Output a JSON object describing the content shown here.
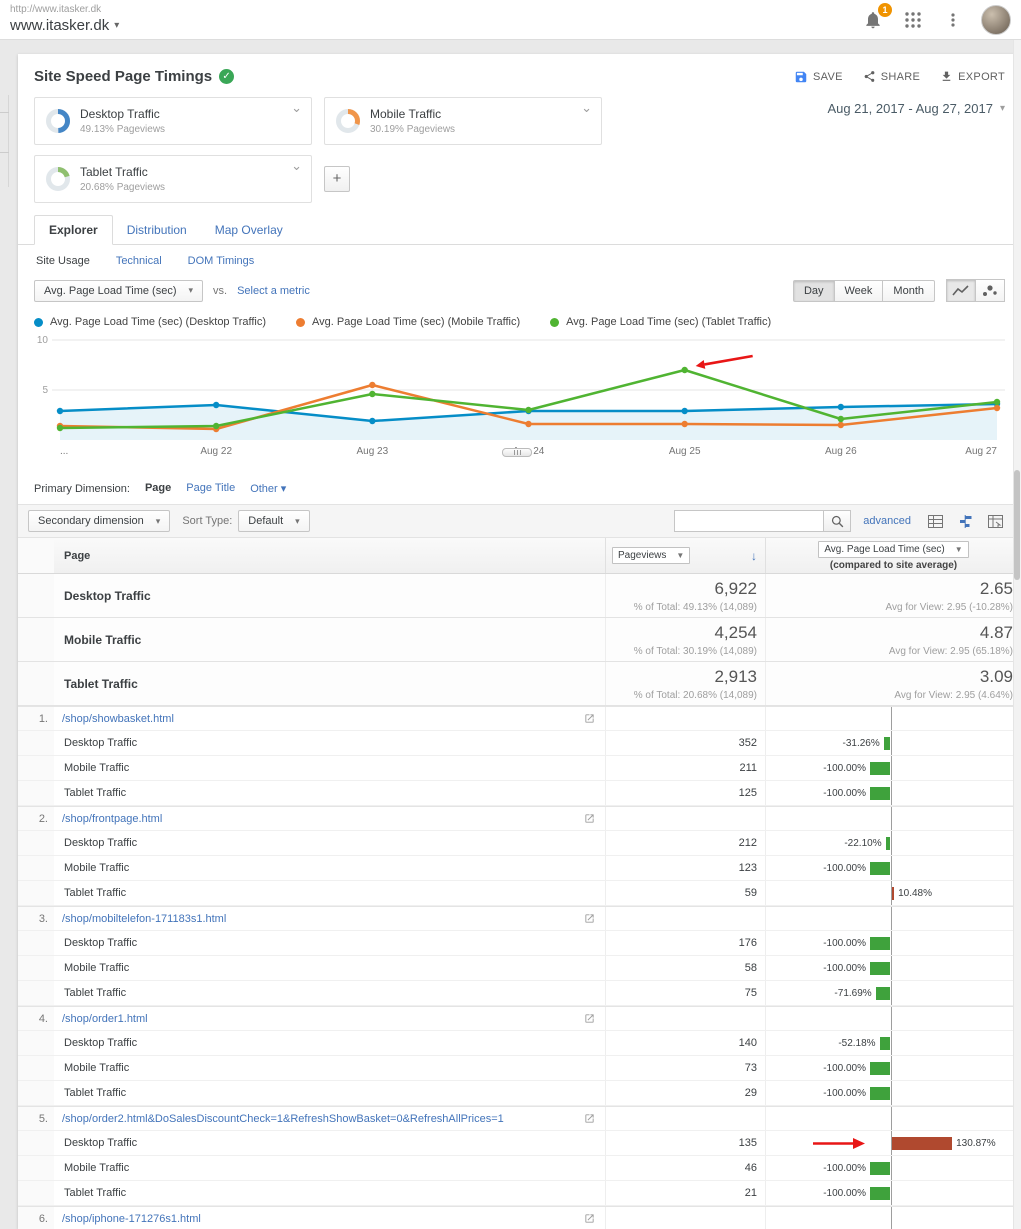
{
  "topbar": {
    "url": "http://www.itasker.dk",
    "account": "www.itasker.dk",
    "notification_count": "1"
  },
  "report": {
    "title": "Site Speed Page Timings",
    "save": "SAVE",
    "share": "SHARE",
    "export": "EXPORT",
    "date_range": "Aug 21, 2017 - Aug 27, 2017"
  },
  "segments": [
    {
      "name": "Desktop Traffic",
      "detail": "49.13% Pageviews",
      "pct": 49.13,
      "color": "#4486c6"
    },
    {
      "name": "Mobile Traffic",
      "detail": "30.19% Pageviews",
      "pct": 30.19,
      "color": "#f0954a"
    },
    {
      "name": "Tablet Traffic",
      "detail": "20.68% Pageviews",
      "pct": 20.68,
      "color": "#8fbf6f"
    }
  ],
  "tabs": [
    {
      "label": "Explorer",
      "active": true
    },
    {
      "label": "Distribution",
      "active": false
    },
    {
      "label": "Map Overlay",
      "active": false
    }
  ],
  "subnav": [
    {
      "label": "Site Usage",
      "active": true
    },
    {
      "label": "Technical",
      "active": false
    },
    {
      "label": "DOM Timings",
      "active": false
    }
  ],
  "controls": {
    "metric": "Avg. Page Load Time (sec)",
    "vs": "vs.",
    "select_metric": "Select a metric",
    "granularity": [
      {
        "label": "Day",
        "active": true
      },
      {
        "label": "Week",
        "active": false
      },
      {
        "label": "Month",
        "active": false
      }
    ]
  },
  "chart_data": {
    "type": "line",
    "title": "",
    "x": [
      "...",
      "Aug 22",
      "Aug 23",
      "Aug 24",
      "Aug 25",
      "Aug 26",
      "Aug 27"
    ],
    "ylim": [
      0,
      10
    ],
    "yticks": [
      5,
      10
    ],
    "grid": true,
    "legend_position": "top",
    "ylabel": "Avg. Page Load Time (sec)",
    "series": [
      {
        "name": "Avg. Page Load Time (sec) (Desktop Traffic)",
        "color": "#058dc7",
        "area": true,
        "values": [
          2.9,
          3.5,
          1.9,
          2.9,
          2.9,
          3.3,
          3.6
        ]
      },
      {
        "name": "Avg. Page Load Time (sec) (Mobile Traffic)",
        "color": "#ed7d31",
        "area": false,
        "values": [
          1.4,
          1.1,
          5.5,
          1.6,
          1.6,
          1.5,
          3.2
        ]
      },
      {
        "name": "Avg. Page Load Time (sec) (Tablet Traffic)",
        "color": "#50b432",
        "area": false,
        "values": [
          1.2,
          1.4,
          4.6,
          3.0,
          7.0,
          2.1,
          3.8
        ]
      }
    ],
    "annotation": {
      "series": 2,
      "point": 4
    }
  },
  "dimensions": {
    "label": "Primary Dimension:",
    "options": [
      {
        "label": "Page",
        "active": true,
        "caret": false
      },
      {
        "label": "Page Title",
        "active": false,
        "caret": false
      },
      {
        "label": "Other",
        "active": false,
        "caret": true
      }
    ]
  },
  "toolbar": {
    "secondary_dimension": "Secondary dimension",
    "sort_type_label": "Sort Type:",
    "sort_value": "Default",
    "advanced": "advanced",
    "search_value": ""
  },
  "table": {
    "columns": {
      "page": "Page",
      "pageviews": "Pageviews",
      "metric": "Avg. Page Load Time (sec)",
      "metric_sub": "(compared to site average)"
    },
    "summary": [
      {
        "label": "Desktop Traffic",
        "pageviews": "6,922",
        "pageviews_sub": "% of Total: 49.13% (14,089)",
        "metric": "2.65",
        "metric_sub": "Avg for View: 2.95 (-10.28%)"
      },
      {
        "label": "Mobile Traffic",
        "pageviews": "4,254",
        "pageviews_sub": "% of Total: 30.19% (14,089)",
        "metric": "4.87",
        "metric_sub": "Avg for View: 2.95 (65.18%)"
      },
      {
        "label": "Tablet Traffic",
        "pageviews": "2,913",
        "pageviews_sub": "% of Total: 20.68% (14,089)",
        "metric": "3.09",
        "metric_sub": "Avg for View: 2.95 (4.64%)"
      }
    ],
    "rows": [
      {
        "index": "1.",
        "url": "/shop/showbasket.html",
        "segments": [
          {
            "label": "Desktop Traffic",
            "pageviews": "352",
            "pct_label": "-31.26%",
            "pct": -31.26
          },
          {
            "label": "Mobile Traffic",
            "pageviews": "211",
            "pct_label": "-100.00%",
            "pct": -100
          },
          {
            "label": "Tablet Traffic",
            "pageviews": "125",
            "pct_label": "-100.00%",
            "pct": -100
          }
        ]
      },
      {
        "index": "2.",
        "url": "/shop/frontpage.html",
        "segments": [
          {
            "label": "Desktop Traffic",
            "pageviews": "212",
            "pct_label": "-22.10%",
            "pct": -22.1
          },
          {
            "label": "Mobile Traffic",
            "pageviews": "123",
            "pct_label": "-100.00%",
            "pct": -100
          },
          {
            "label": "Tablet Traffic",
            "pageviews": "59",
            "pct_label": "10.48%",
            "pct": 10.48
          }
        ]
      },
      {
        "index": "3.",
        "url": "/shop/mobiltelefon-171183s1.html",
        "segments": [
          {
            "label": "Desktop Traffic",
            "pageviews": "176",
            "pct_label": "-100.00%",
            "pct": -100
          },
          {
            "label": "Mobile Traffic",
            "pageviews": "58",
            "pct_label": "-100.00%",
            "pct": -100
          },
          {
            "label": "Tablet Traffic",
            "pageviews": "75",
            "pct_label": "-71.69%",
            "pct": -71.69
          }
        ]
      },
      {
        "index": "4.",
        "url": "/shop/order1.html",
        "segments": [
          {
            "label": "Desktop Traffic",
            "pageviews": "140",
            "pct_label": "-52.18%",
            "pct": -52.18
          },
          {
            "label": "Mobile Traffic",
            "pageviews": "73",
            "pct_label": "-100.00%",
            "pct": -100
          },
          {
            "label": "Tablet Traffic",
            "pageviews": "29",
            "pct_label": "-100.00%",
            "pct": -100
          }
        ]
      },
      {
        "index": "5.",
        "url": "/shop/order2.html&DoSalesDiscountCheck=1&RefreshShowBasket=0&RefreshAllPrices=1",
        "segments": [
          {
            "label": "Desktop Traffic",
            "pageviews": "135",
            "pct_label": "130.87%",
            "pct": 130.87,
            "arrow": true
          },
          {
            "label": "Mobile Traffic",
            "pageviews": "46",
            "pct_label": "-100.00%",
            "pct": -100
          },
          {
            "label": "Tablet Traffic",
            "pageviews": "21",
            "pct_label": "-100.00%",
            "pct": -100
          }
        ]
      },
      {
        "index": "6.",
        "url": "/shop/iphone-171276s1.html",
        "segments": []
      }
    ]
  },
  "colors": {
    "positive_bar": "#b0492f",
    "negative_bar": "#3fa23c",
    "annotation": "#e81616",
    "link": "#4374ba"
  }
}
